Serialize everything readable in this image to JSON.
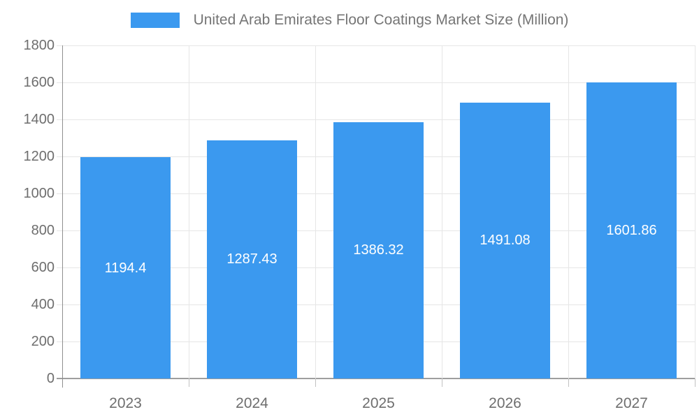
{
  "chart_data": {
    "type": "bar",
    "title": "United Arab Emirates Floor Coatings Market Size (Million)",
    "categories": [
      "2023",
      "2024",
      "2025",
      "2026",
      "2027"
    ],
    "values": [
      1194.4,
      1287.43,
      1386.32,
      1491.08,
      1601.86
    ],
    "value_labels": [
      "1194.4",
      "1287.43",
      "1386.32",
      "1491.08",
      "1601.86"
    ],
    "xlabel": "",
    "ylabel": "",
    "ylim": [
      0,
      1800
    ],
    "ytick_step": 200,
    "ytick_labels": [
      "0",
      "200",
      "400",
      "600",
      "800",
      "1000",
      "1200",
      "1400",
      "1600",
      "1800"
    ],
    "grid": true,
    "legend_position": "top",
    "legend_entries": [
      "United Arab Emirates Floor Coatings Market Size (Million)"
    ],
    "colors": {
      "bar": "#3b99ef",
      "grid": "#e6e6e6",
      "axis": "#9e9e9e",
      "y_axis_line": "#8f8f8f",
      "tick_mark": "#c2c2c2",
      "tick_label": "#6e6e6e",
      "value_label": "#ffffff",
      "legend_text": "#757575",
      "background": "#ffffff"
    }
  }
}
